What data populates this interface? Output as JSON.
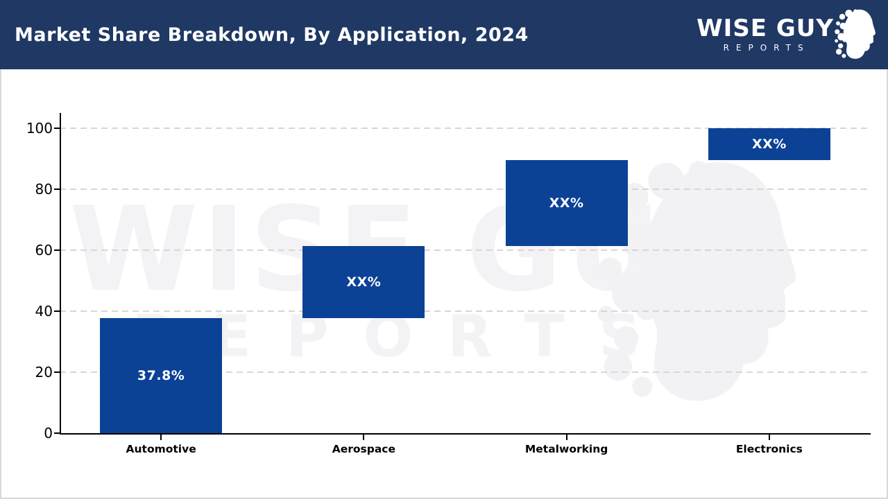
{
  "header": {
    "title": "Market Share Breakdown, By Application, 2024",
    "bg_color": "#1f3864",
    "logo": {
      "line1": "WISE GUY",
      "line2": "REPORTS"
    }
  },
  "watermark": {
    "line1": "WISE GUY",
    "line2": "REPORTS"
  },
  "chart_data": {
    "type": "bar",
    "subtype": "waterfall",
    "title": "Market Share Breakdown, By Application, 2024",
    "categories": [
      "Automotive",
      "Aerospace",
      "Metalworking",
      "Electronics"
    ],
    "bars": [
      {
        "category": "Automotive",
        "start": 0,
        "end": 37.8,
        "label": "37.8%"
      },
      {
        "category": "Aerospace",
        "start": 37.8,
        "end": 61.4,
        "label": "XX%"
      },
      {
        "category": "Metalworking",
        "start": 61.4,
        "end": 89.6,
        "label": "XX%"
      },
      {
        "category": "Electronics",
        "start": 89.6,
        "end": 100,
        "label": "XX%"
      }
    ],
    "yticks": [
      0,
      20,
      40,
      60,
      80,
      100
    ],
    "ylim": [
      0,
      105
    ],
    "xlabel": "",
    "ylabel": "",
    "grid": "horizontal-dashed",
    "legend": null,
    "bar_color": "#0b4296",
    "value_label_color": "#ffffff"
  }
}
